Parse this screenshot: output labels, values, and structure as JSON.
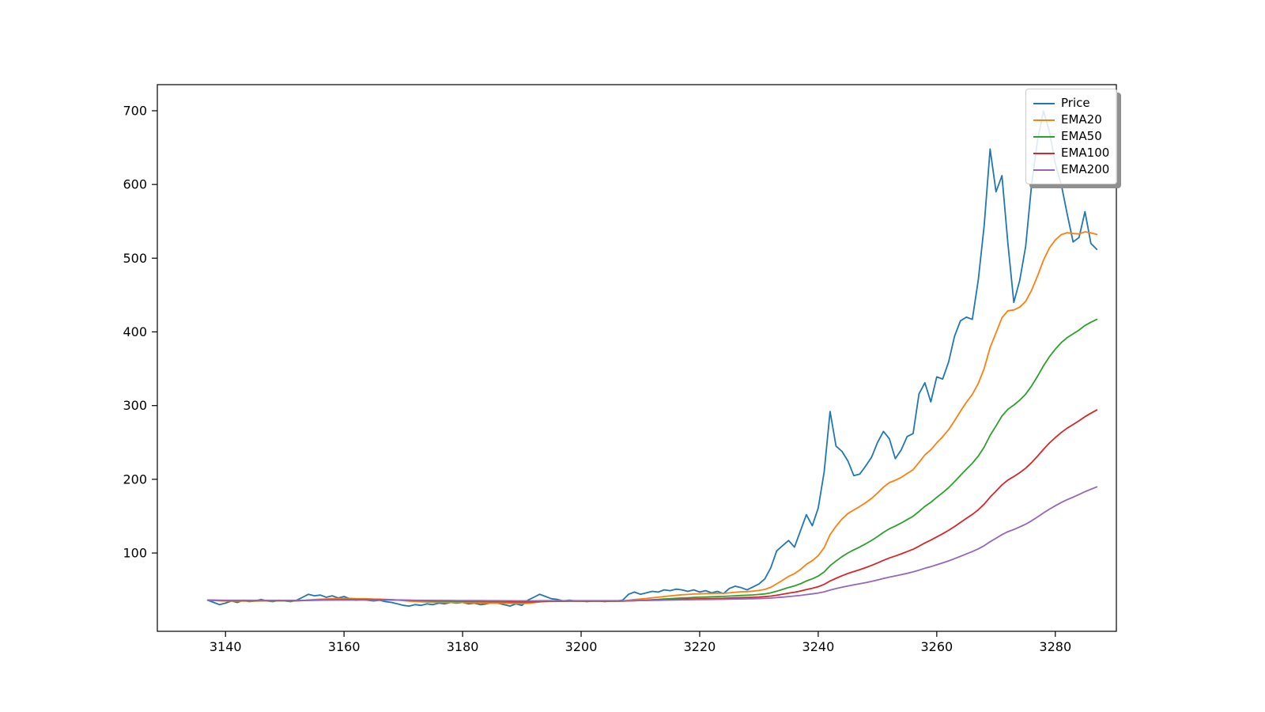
{
  "chart_data": {
    "type": "line",
    "title": "",
    "xlabel": "",
    "ylabel": "",
    "grid": false,
    "legend_position": "upper right",
    "axes": {
      "xlim": [
        3128.5,
        3290.3
      ],
      "ylim": [
        -6.2,
        735.4
      ],
      "xticks": [
        3140,
        3160,
        3180,
        3200,
        3220,
        3240,
        3260,
        3280
      ],
      "yticks": [
        100,
        200,
        300,
        400,
        500,
        600,
        700
      ]
    },
    "x": [
      3137,
      3138,
      3139,
      3140,
      3141,
      3142,
      3143,
      3144,
      3145,
      3146,
      3147,
      3148,
      3149,
      3150,
      3151,
      3152,
      3153,
      3154,
      3155,
      3156,
      3157,
      3158,
      3159,
      3160,
      3161,
      3162,
      3163,
      3164,
      3165,
      3166,
      3167,
      3168,
      3169,
      3170,
      3171,
      3172,
      3173,
      3174,
      3175,
      3176,
      3177,
      3178,
      3179,
      3180,
      3181,
      3182,
      3183,
      3184,
      3185,
      3186,
      3187,
      3188,
      3189,
      3190,
      3191,
      3192,
      3193,
      3194,
      3195,
      3196,
      3197,
      3198,
      3199,
      3200,
      3201,
      3202,
      3203,
      3204,
      3205,
      3206,
      3207,
      3208,
      3209,
      3210,
      3211,
      3212,
      3213,
      3214,
      3215,
      3216,
      3217,
      3218,
      3219,
      3220,
      3221,
      3222,
      3223,
      3224,
      3225,
      3226,
      3227,
      3228,
      3229,
      3230,
      3231,
      3232,
      3233,
      3234,
      3235,
      3236,
      3237,
      3238,
      3239,
      3240,
      3241,
      3242,
      3243,
      3244,
      3245,
      3246,
      3247,
      3248,
      3249,
      3250,
      3251,
      3252,
      3253,
      3254,
      3255,
      3256,
      3257,
      3258,
      3259,
      3260,
      3261,
      3262,
      3263,
      3264,
      3265,
      3266,
      3267,
      3268,
      3269,
      3270,
      3271,
      3272,
      3273,
      3274,
      3275,
      3276,
      3277,
      3278,
      3279,
      3280,
      3281,
      3282,
      3283,
      3284,
      3285,
      3286,
      3287
    ],
    "series": [
      {
        "name": "Price",
        "color": "#1f77b4",
        "values": [
          36,
          33,
          30,
          32,
          35,
          33,
          36,
          34,
          35,
          37,
          35,
          34,
          36,
          35,
          34,
          36,
          40,
          44,
          42,
          43,
          40,
          42,
          39,
          41,
          38,
          36,
          37,
          36,
          35,
          36,
          34,
          33,
          31,
          29,
          28,
          30,
          29,
          31,
          30,
          32,
          31,
          33,
          32,
          33,
          31,
          32,
          30,
          31,
          33,
          32,
          30,
          28,
          31,
          29,
          36,
          40,
          44,
          41,
          38,
          37,
          35,
          36,
          35,
          35,
          34,
          35,
          35,
          34,
          35,
          35,
          36,
          44,
          47,
          44,
          46,
          48,
          47,
          50,
          49,
          51,
          50,
          48,
          50,
          47,
          49,
          46,
          48,
          45,
          52,
          55,
          53,
          50,
          54,
          58,
          65,
          80,
          103,
          110,
          117,
          108,
          130,
          152,
          137,
          161,
          210,
          292,
          245,
          238,
          225,
          205,
          207,
          218,
          230,
          250,
          265,
          255,
          228,
          240,
          258,
          262,
          316,
          331,
          305,
          339,
          336,
          359,
          394,
          415,
          420,
          417,
          470,
          544,
          648,
          590,
          612,
          520,
          440,
          470,
          516,
          600,
          660,
          700,
          672,
          628,
          600,
          560,
          522,
          528,
          563,
          520,
          512
        ]
      },
      {
        "name": "EMA20",
        "color": "#ff7f0e",
        "derived": "ema_of_price",
        "period": 20
      },
      {
        "name": "EMA50",
        "color": "#2ca02c",
        "derived": "ema_of_price",
        "period": 50
      },
      {
        "name": "EMA100",
        "color": "#d62728",
        "derived": "ema_of_price",
        "period": 100
      },
      {
        "name": "EMA200",
        "color": "#9467bd",
        "derived": "ema_of_price",
        "period": 200
      }
    ],
    "series_endpoints_read_from_chart": {
      "Price": 512,
      "EMA20": 548,
      "EMA50": 422,
      "EMA100": 297,
      "EMA200": 195
    }
  },
  "legend": {
    "items": [
      "Price",
      "EMA20",
      "EMA50",
      "EMA100",
      "EMA200"
    ]
  }
}
